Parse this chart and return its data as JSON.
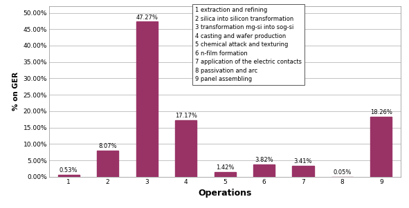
{
  "categories": [
    "1",
    "2",
    "3",
    "4",
    "5",
    "6",
    "7",
    "8",
    "9"
  ],
  "values": [
    0.53,
    8.07,
    47.27,
    17.17,
    1.42,
    3.82,
    3.41,
    0.05,
    18.26
  ],
  "labels": [
    "0.53%",
    "8.07%",
    "47.27%",
    "17.17%",
    "1.42%",
    "3.82%",
    "3.41%",
    "0.05%",
    "18.26%"
  ],
  "bar_color": "#993366",
  "xlabel": "Operations",
  "ylabel": "% on GER",
  "ylim": [
    0,
    52
  ],
  "yticks": [
    0,
    5,
    10,
    15,
    20,
    25,
    30,
    35,
    40,
    45,
    50
  ],
  "ytick_labels": [
    "0.00%",
    "5.00%",
    "10.00%",
    "15.00%",
    "20.00%",
    "25.00%",
    "30.00%",
    "35.00%",
    "40.00%",
    "45.00%",
    "50.00%"
  ],
  "legend_entries": [
    "1 extraction and refining",
    "2 silica into silicon transformation",
    "3 transformation mg-si into sog-si",
    "4 casting and wafer production",
    "5 chemical attack and texturing",
    "6 n-film formation",
    "7 application of the electric contacts",
    "8 passivation and arc",
    "9 panel assembling"
  ],
  "background_color": "#ffffff",
  "grid_color": "#aaaaaa",
  "label_fontsize": 6,
  "axis_label_fontsize": 8,
  "tick_fontsize": 6.5,
  "legend_fontsize": 6.0,
  "xlabel_fontsize": 9,
  "ylabel_fontsize": 7.5
}
